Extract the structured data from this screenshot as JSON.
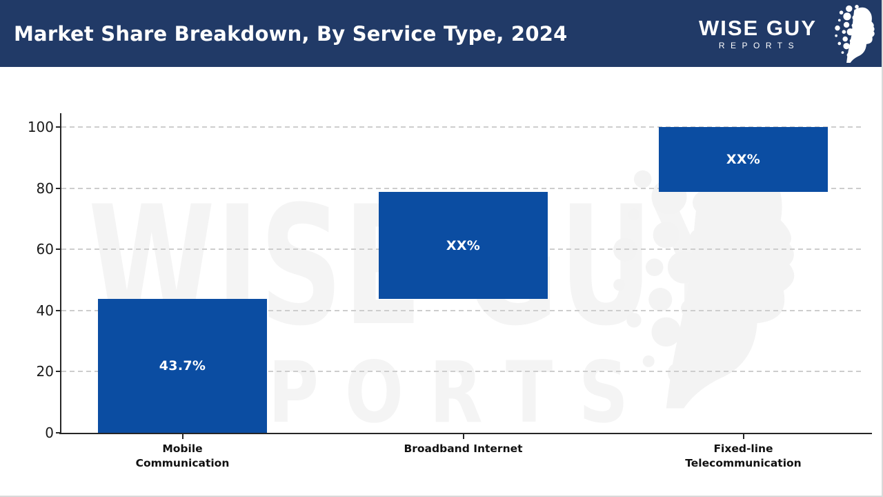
{
  "header": {
    "title": "Market Share Breakdown, By Service Type, 2024",
    "logo": {
      "line1": "WISE GUY",
      "line2": "REPORTS",
      "head_icon": "dotted-face-profile"
    }
  },
  "watermark": {
    "line1": "WISE GUY",
    "line2": "REPORTS",
    "head_icon": "dotted-face-profile"
  },
  "colors": {
    "header_bg": "#213A67",
    "bar": "#0B4DA2",
    "gridline": "#CDCDCD",
    "axis": "#262626",
    "bar_label": "#FFFFFF",
    "watermark": "#F4F4F4"
  },
  "chart_data": {
    "type": "bar",
    "variant": "waterfall",
    "title": "Market Share Breakdown, By Service Type, 2024",
    "categories": [
      "Mobile Communication",
      "Broadband Internet",
      "Fixed-line Telecommunication"
    ],
    "category_lines": [
      [
        "Mobile",
        "Communication"
      ],
      [
        "Broadband Internet"
      ],
      [
        "Fixed-line",
        "Telecommunication"
      ]
    ],
    "segments": [
      {
        "category": "Mobile Communication",
        "start": 0,
        "end": 43.7,
        "label": "43.7%"
      },
      {
        "category": "Broadband Internet",
        "start": 43.7,
        "end": 78.8,
        "label": "XX%"
      },
      {
        "category": "Fixed-line Telecommunication",
        "start": 78.8,
        "end": 100,
        "label": "XX%"
      }
    ],
    "yticks": [
      0,
      20,
      40,
      60,
      80,
      100
    ],
    "ylim": [
      0,
      104.5
    ],
    "xlabel": "",
    "ylabel": "",
    "grid": "horizontal-dashed",
    "legend": "none"
  }
}
